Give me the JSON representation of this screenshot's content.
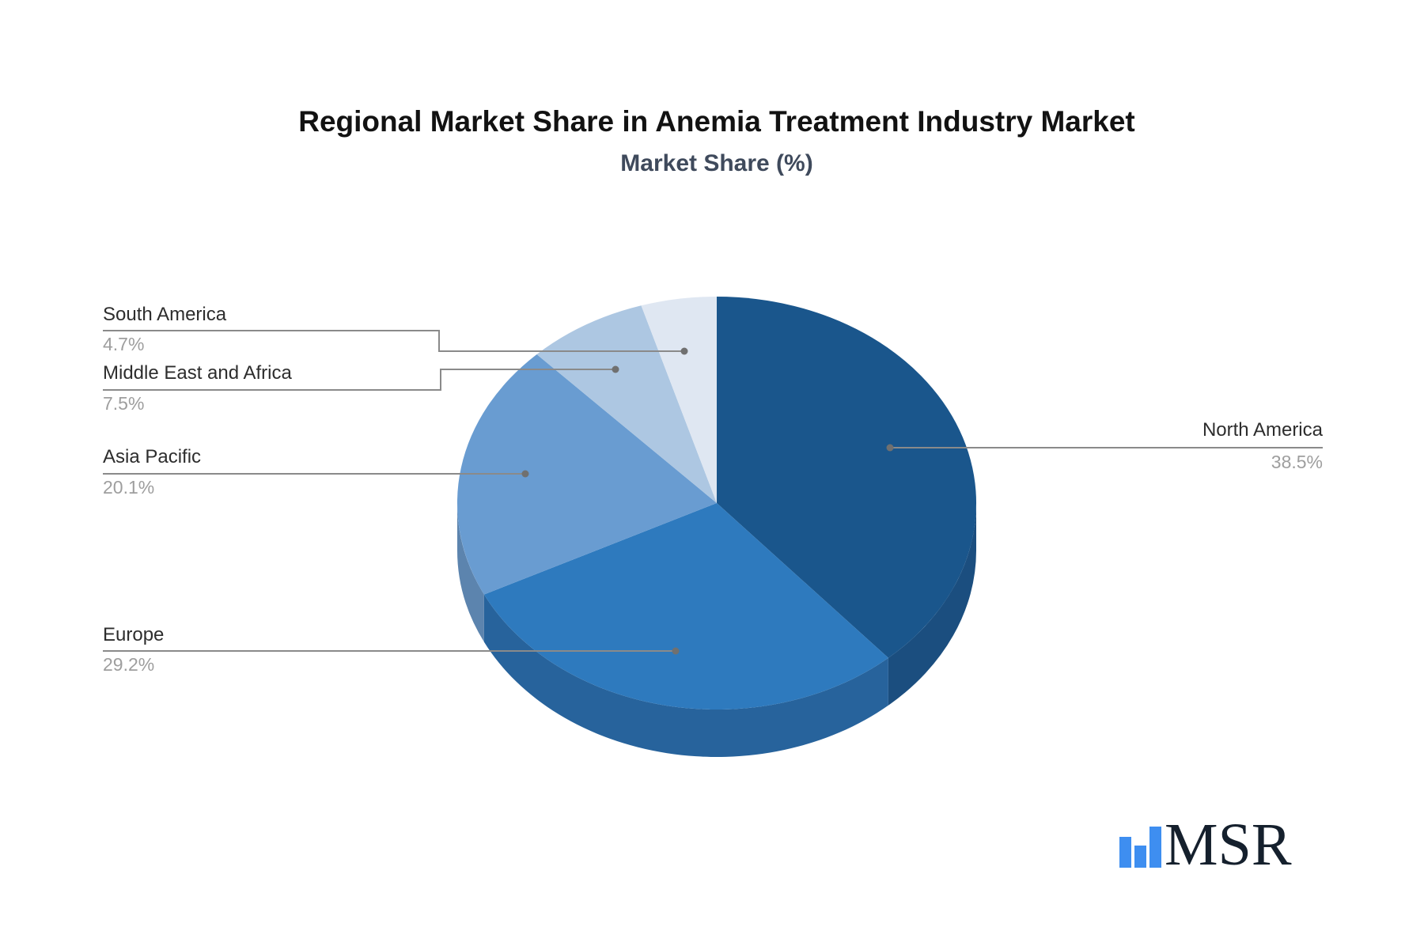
{
  "title": "Regional Market Share in Anemia Treatment Industry Market",
  "subtitle": "Market Share (%)",
  "chart_data": {
    "type": "pie",
    "style": "3d",
    "title": "Regional Market Share in Anemia Treatment Industry Market",
    "subtitle": "Market Share (%)",
    "unit": "%",
    "categories": [
      "North America",
      "Europe",
      "Asia Pacific",
      "Middle East and Africa",
      "South America"
    ],
    "values": [
      38.5,
      29.2,
      20.1,
      7.5,
      4.7
    ],
    "value_labels": [
      "38.5%",
      "29.2%",
      "20.1%",
      "7.5%",
      "4.7%"
    ],
    "colors": [
      "#1a568c",
      "#2e7abe",
      "#699cd1",
      "#adc7e2",
      "#dfe7f2"
    ],
    "side_colors": [
      "#1b4e7f",
      "#27639c",
      "#5c84ae",
      "#8fb3d8",
      "#c2d2e6"
    ],
    "start_angle_deg": 0,
    "direction": "clockwise",
    "legend_position": "none",
    "label_style": "callout-lines-with-dots",
    "grid": false
  },
  "logo": {
    "text": "MSR",
    "bar_color": "#3e8ef0",
    "text_color": "#15202d",
    "icon": "bar-chart-icon"
  }
}
